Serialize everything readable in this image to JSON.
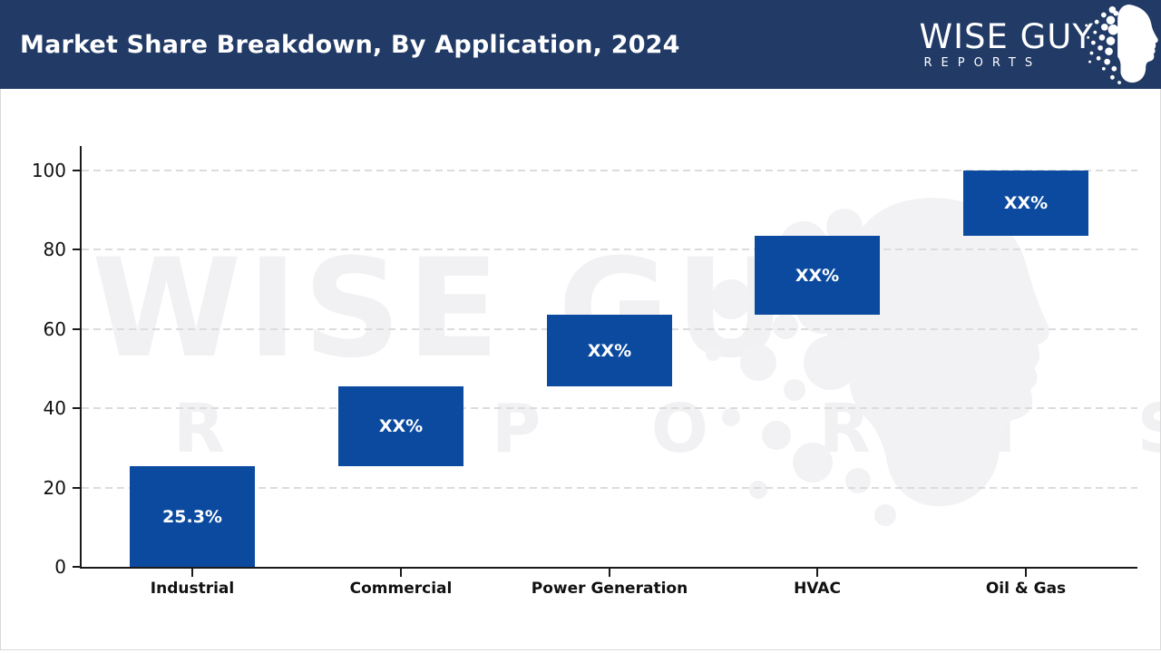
{
  "header": {
    "title": "Market Share Breakdown, By Application, 2024",
    "logo": {
      "line1": "WISE GUY",
      "line2": "REPORTS"
    }
  },
  "watermark": {
    "line1": "WISE GUY",
    "line2": "R E P O R T S"
  },
  "colors": {
    "header_bg": "#213a66",
    "bar": "#0b4a9f",
    "grid": "#dcdcdc",
    "axis": "#1a1a1a",
    "watermark": "#f1f1f4",
    "border": "#d9d9d9",
    "bar_label": "#ffffff"
  },
  "chart_data": {
    "type": "bar",
    "variant": "floating-waterfall",
    "title": "Market Share Breakdown, By Application, 2024",
    "categories": [
      "Industrial",
      "Commercial",
      "Power Generation",
      "HVAC",
      "Oil & Gas"
    ],
    "segments": [
      {
        "category": "Industrial",
        "start": 0,
        "end": 25.3,
        "label": "25.3%"
      },
      {
        "category": "Commercial",
        "start": 25.3,
        "end": 45.5,
        "label": "XX%"
      },
      {
        "category": "Power Generation",
        "start": 45.5,
        "end": 63.5,
        "label": "XX%"
      },
      {
        "category": "HVAC",
        "start": 63.5,
        "end": 83.5,
        "label": "XX%"
      },
      {
        "category": "Oil & Gas",
        "start": 83.5,
        "end": 100,
        "label": "XX%"
      }
    ],
    "xlabel": "",
    "ylabel": "",
    "ylim": [
      0,
      100
    ],
    "yticks": [
      0,
      20,
      40,
      60,
      80,
      100
    ],
    "grid": "horizontal-dashed",
    "legend": null,
    "bar_color": "#0b4a9f",
    "label_color": "#ffffff"
  }
}
